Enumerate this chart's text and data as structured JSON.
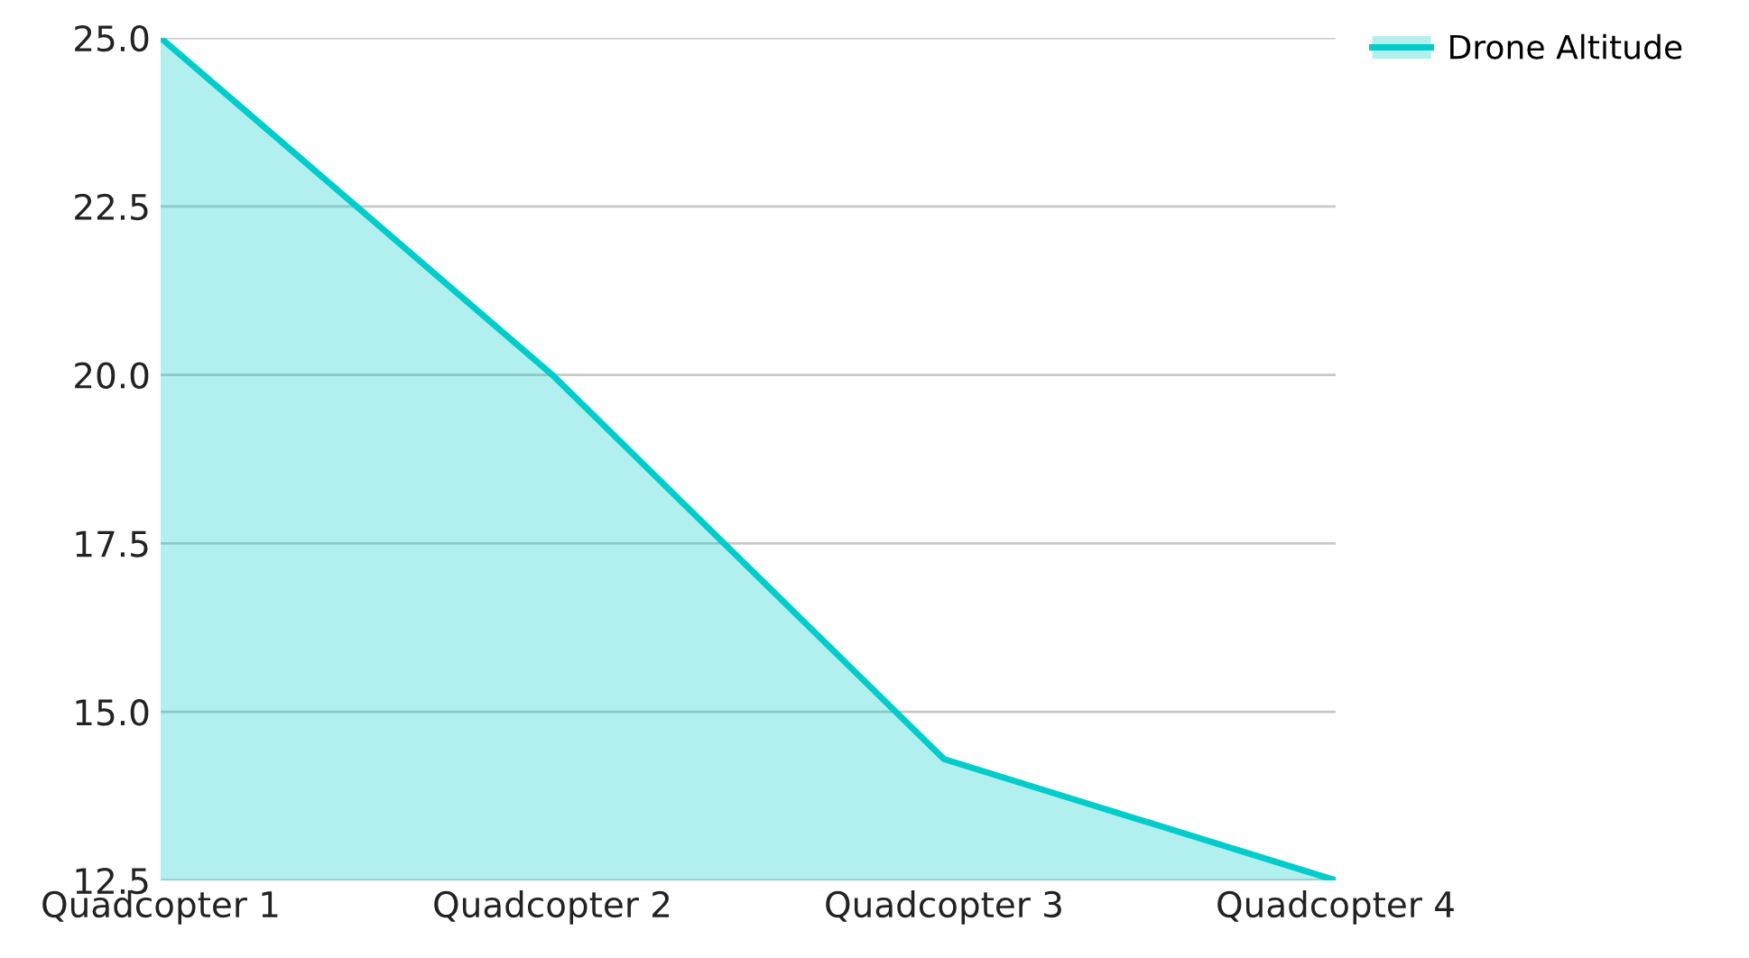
{
  "chart_data": {
    "type": "area",
    "categories": [
      "Quadcopter 1",
      "Quadcopter 2",
      "Quadcopter 3",
      "Quadcopter 4"
    ],
    "series": [
      {
        "name": "Drone Altitude",
        "color": "#00cccc",
        "values": [
          25.0,
          20.0,
          14.3,
          12.5
        ]
      }
    ],
    "ylim": [
      12.5,
      25.0
    ],
    "yticks": [
      {
        "value": 12.5,
        "label": "12.5"
      },
      {
        "value": 15,
        "label": "15.0"
      },
      {
        "value": 17.5,
        "label": "17.5"
      },
      {
        "value": 20,
        "label": "20.0"
      },
      {
        "value": 22.5,
        "label": "22.5"
      },
      {
        "value": 25,
        "label": "25.0"
      }
    ],
    "grid": "y",
    "legend": "top right"
  }
}
